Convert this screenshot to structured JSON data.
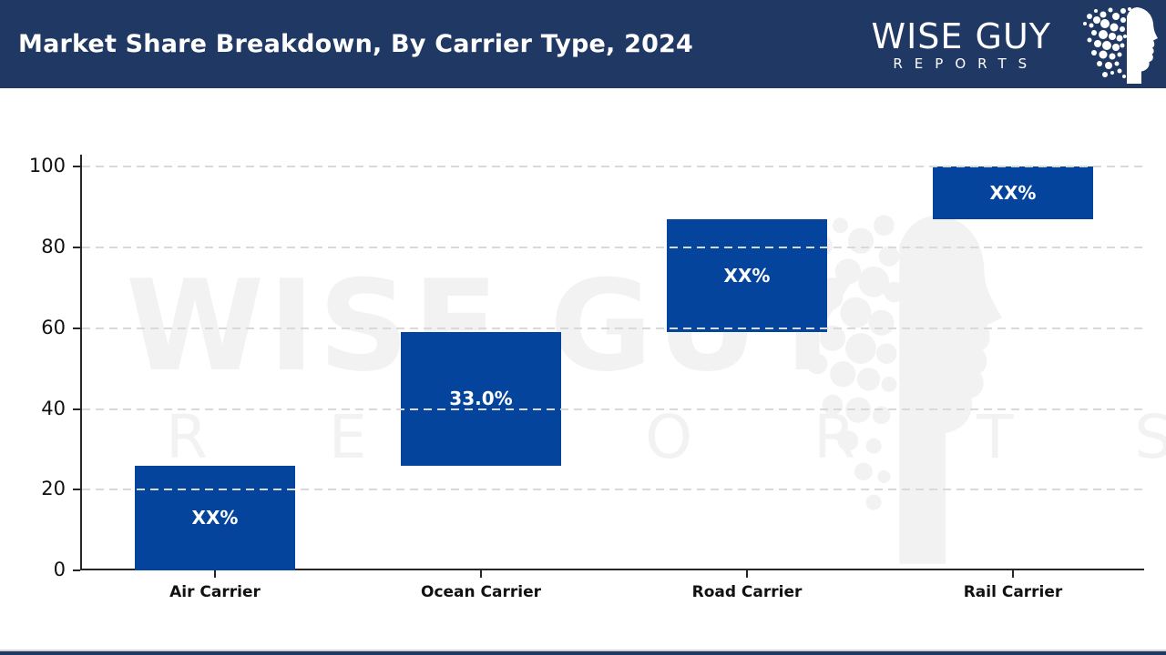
{
  "header": {
    "title": "Market Share Breakdown, By Carrier Type, 2024",
    "logo": {
      "name": "WISE GUY",
      "sub": "REPORTS"
    }
  },
  "watermark": {
    "name": "WISE GUY",
    "sub": "R E P O R T S"
  },
  "colors": {
    "header_bg": "#203864",
    "bar": "#05449C",
    "grid": "#d9d9d9",
    "axis": "#262626",
    "tick_text": "#111111",
    "bar_label_text": "#ffffff",
    "watermark": "#f2f2f2"
  },
  "chart_data": {
    "type": "bar",
    "subtype": "waterfall",
    "title": "Market Share Breakdown, By Carrier Type, 2024",
    "categories": [
      "Air Carrier",
      "Ocean Carrier",
      "Road Carrier",
      "Rail Carrier"
    ],
    "segments": [
      {
        "category": "Air Carrier",
        "start": 0,
        "end": 26,
        "label": "XX%"
      },
      {
        "category": "Ocean Carrier",
        "start": 26,
        "end": 59,
        "label": "33.0%"
      },
      {
        "category": "Road Carrier",
        "start": 59,
        "end": 87,
        "label": "XX%"
      },
      {
        "category": "Rail Carrier",
        "start": 87,
        "end": 100,
        "label": "XX%"
      }
    ],
    "yticks": [
      0,
      20,
      40,
      60,
      80,
      100
    ],
    "ylim": [
      0,
      103
    ],
    "xlabel": "",
    "ylabel": "",
    "grid": "horizontal-dashed",
    "legend": "none"
  }
}
